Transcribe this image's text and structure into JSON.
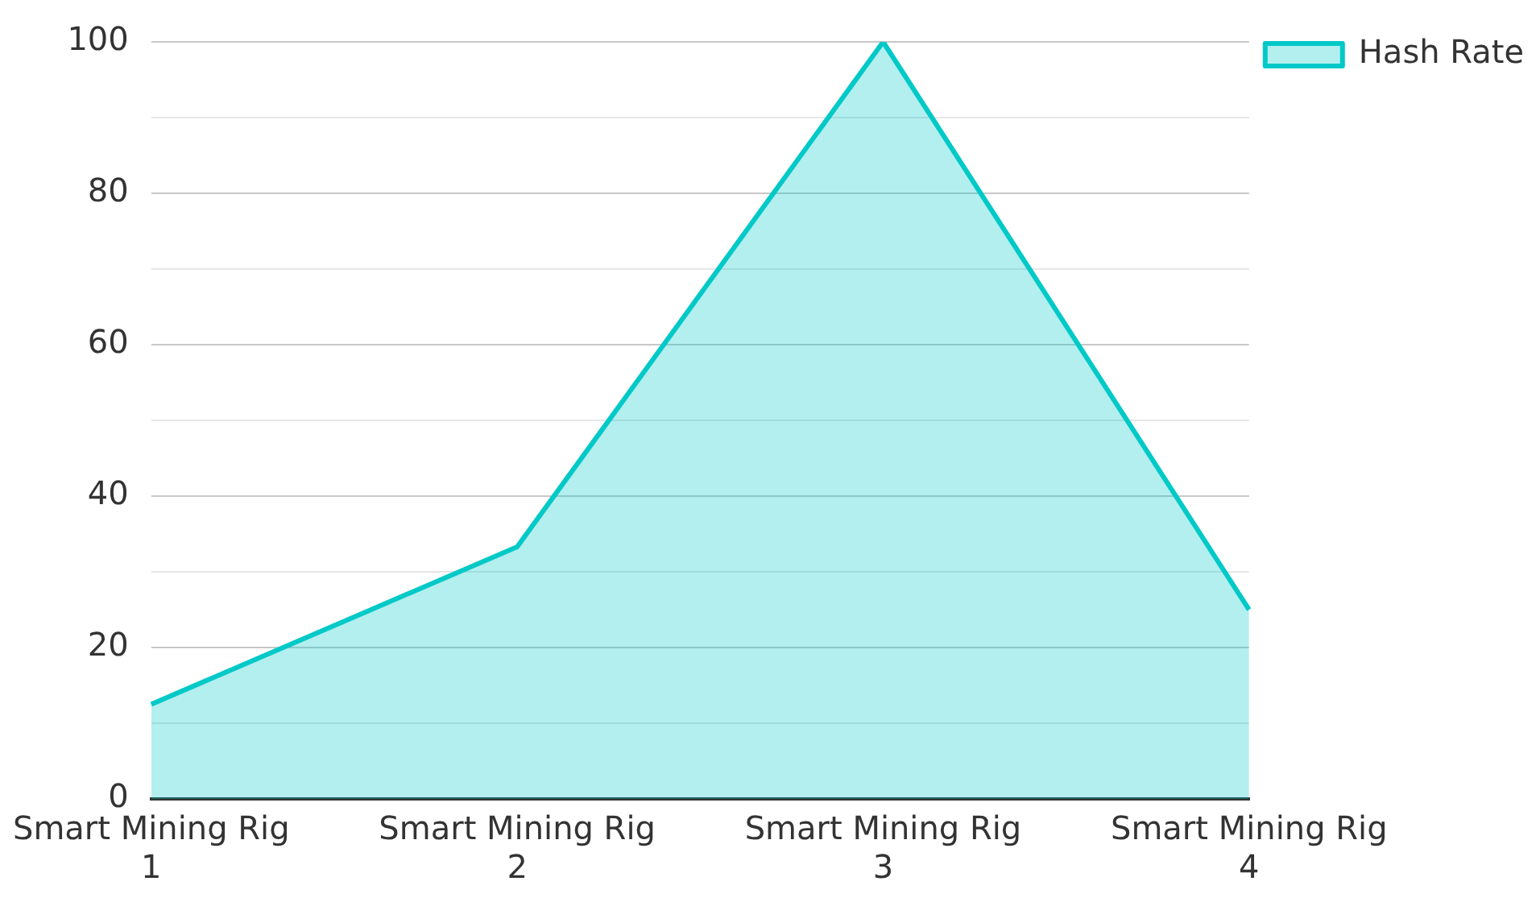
{
  "chart_data": {
    "type": "area",
    "categories": [
      "Smart Mining Rig 1",
      "Smart Mining Rig 2",
      "Smart Mining Rig 3",
      "Smart Mining Rig 4"
    ],
    "series": [
      {
        "name": "Hash Rate",
        "color": "#00c9c8",
        "values": [
          12.5,
          33.3,
          100,
          25
        ]
      }
    ],
    "ylim": [
      0,
      100
    ],
    "yticks": [
      0,
      {
        "value": 10,
        "label": null
      },
      20,
      {
        "value": 30,
        "label": null
      },
      40,
      {
        "value": 50,
        "label": null
      },
      60,
      {
        "value": 70,
        "label": null
      },
      80,
      {
        "value": 90,
        "label": null
      },
      100
    ],
    "grid": "y",
    "legend": "top right",
    "marker": "none"
  }
}
